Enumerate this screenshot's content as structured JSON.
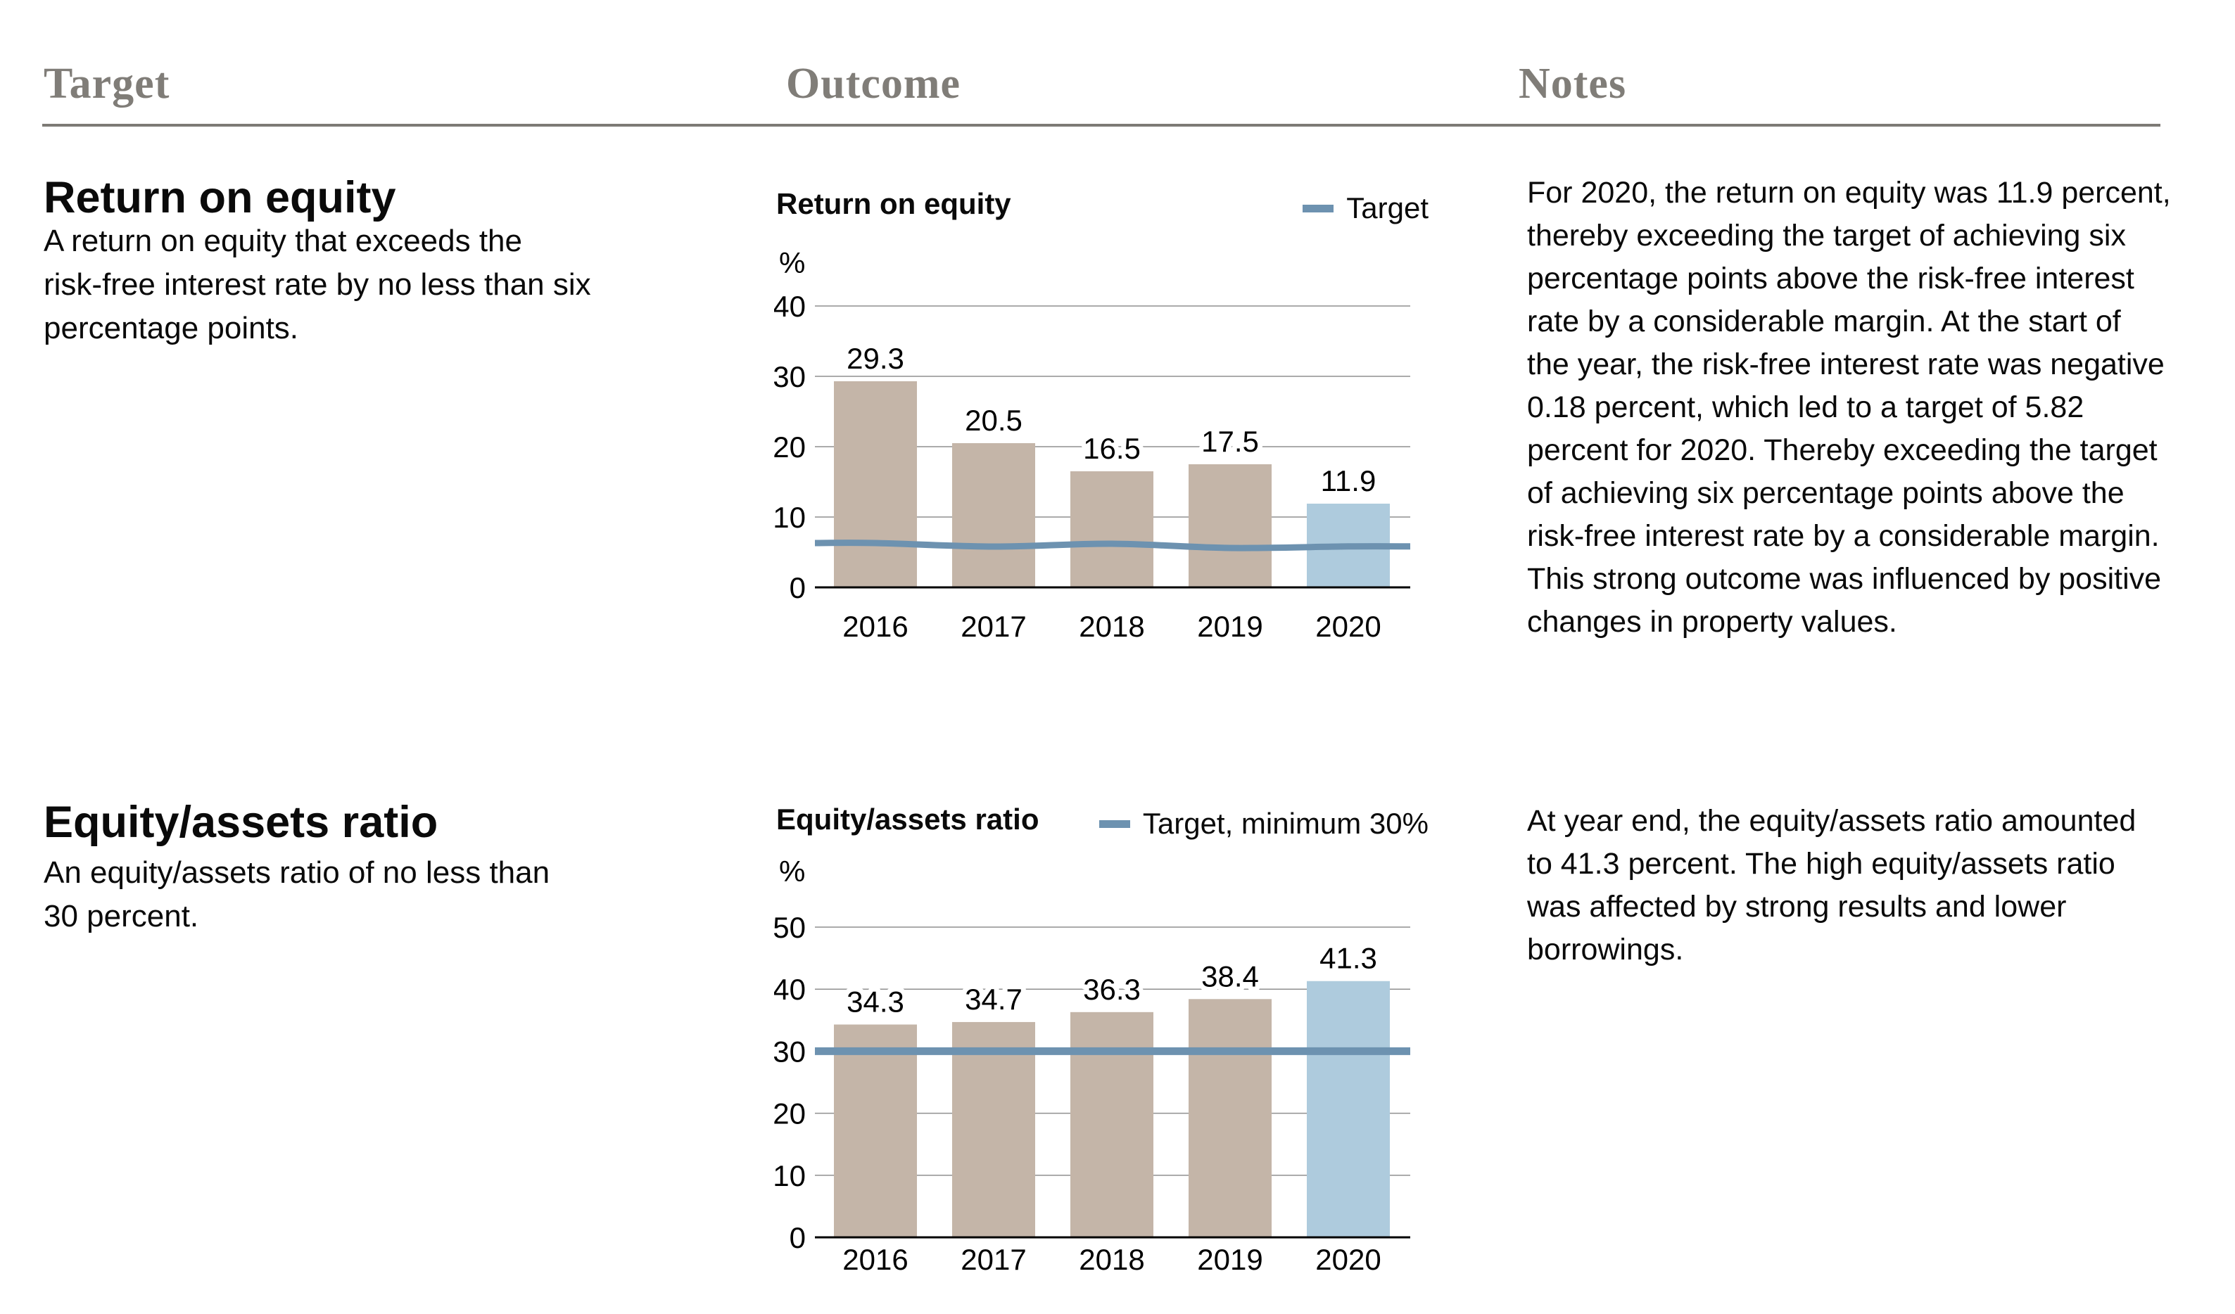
{
  "header": {
    "columns": [
      {
        "label": "Target"
      },
      {
        "label": "Outcome"
      },
      {
        "label": "Notes"
      }
    ]
  },
  "rows": [
    {
      "heading": "Return on equity",
      "description": "A return on equity that exceeds the\nrisk-free interest rate by no less than six\npercentage points.",
      "notes": "For 2020, the return on equity was 11.9 percent,\nthereby exceeding the target of achieving six\npercentage points above the risk-free interest\nrate by a considerable margin. At the start of\nthe year, the risk-free interest rate was negative\n0.18 percent, which led to a target of 5.82\npercent for 2020. Thereby exceeding the target\nof achieving six percentage points above the\nrisk-free interest rate by a considerable margin.\nThis strong outcome was influenced by positive\nchanges in property values."
    },
    {
      "heading": "Equity/assets ratio",
      "description": "An equity/assets ratio of no less than\n30 percent.",
      "notes": "At year end, the equity/assets ratio amounted\nto 41.3 percent. The high equity/assets ratio\nwas affected by strong results and lower\nborrowings."
    }
  ],
  "chart_data": [
    {
      "type": "bar",
      "title": "Return on equity",
      "unit_label": "%",
      "legend": "Target",
      "categories": [
        "2016",
        "2017",
        "2018",
        "2019",
        "2020"
      ],
      "values": [
        29.3,
        20.5,
        16.5,
        17.5,
        11.9
      ],
      "target_series": [
        6.3,
        5.8,
        6.2,
        5.6,
        5.82
      ],
      "ylim": [
        0,
        40
      ],
      "yticks": [
        0,
        10,
        20,
        30,
        40
      ],
      "grid": true,
      "legend_position": "top-right",
      "highlight_index": 4,
      "colors": {
        "bar": "#c4b5a8",
        "highlight": "#aecbdd",
        "target": "#6d92b0"
      }
    },
    {
      "type": "bar",
      "title": "Equity/assets ratio",
      "unit_label": "%",
      "legend": "Target, minimum 30%",
      "categories": [
        "2016",
        "2017",
        "2018",
        "2019",
        "2020"
      ],
      "values": [
        34.3,
        34.7,
        36.3,
        38.4,
        41.3
      ],
      "target_value": 30,
      "ylim": [
        0,
        50
      ],
      "yticks": [
        0,
        10,
        20,
        30,
        40,
        50
      ],
      "grid": true,
      "legend_position": "top-right",
      "highlight_index": 4,
      "colors": {
        "bar": "#c4b5a8",
        "highlight": "#aecbdd",
        "target": "#6d92b0"
      }
    }
  ]
}
